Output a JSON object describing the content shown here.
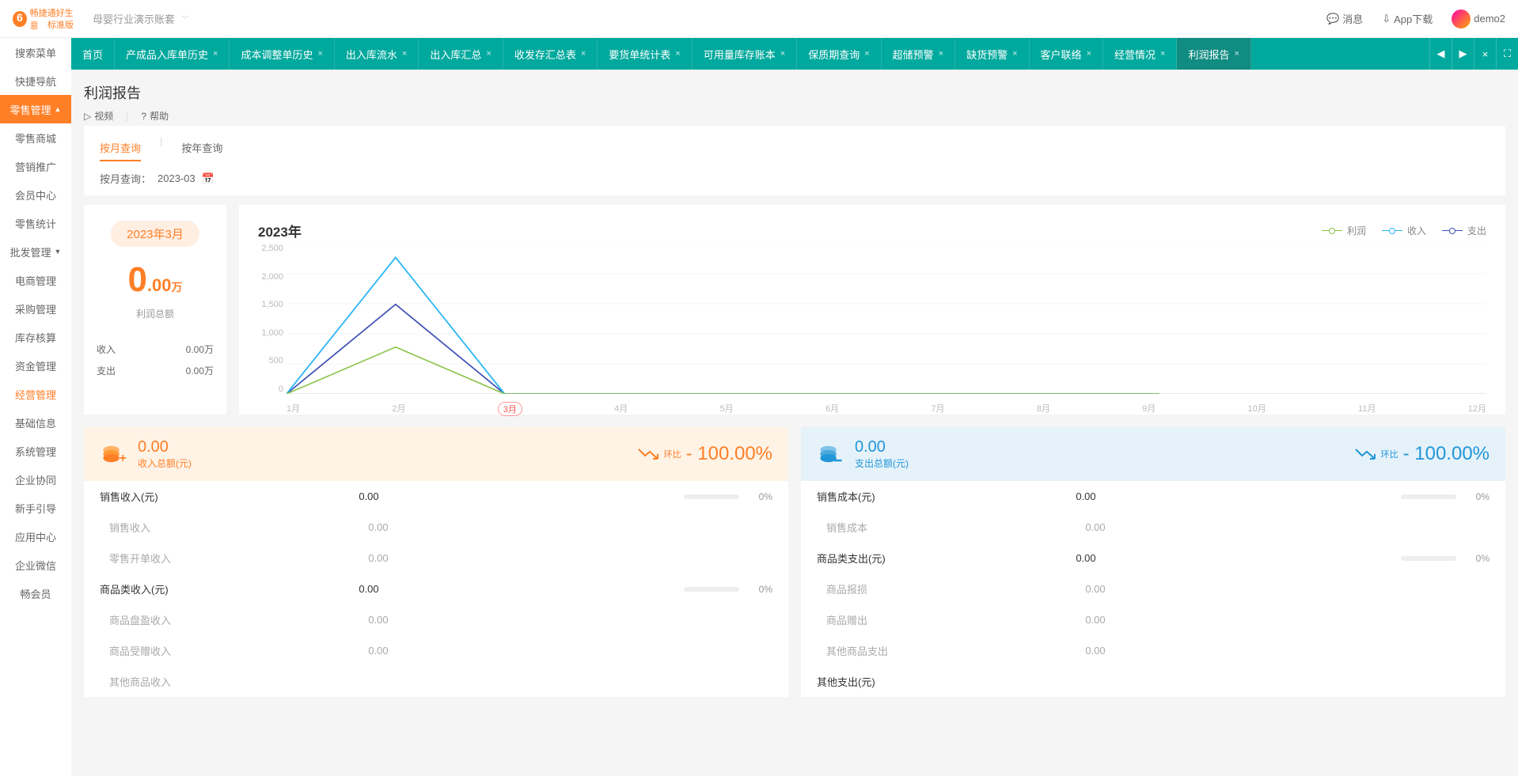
{
  "header": {
    "logo_text": "畅捷通好生意",
    "logo_sub": "标准版",
    "account": "母婴行业演示账套",
    "msg": "消息",
    "app": "App下载",
    "user": "demo2"
  },
  "sidebar": {
    "items": [
      {
        "label": "搜索菜单"
      },
      {
        "label": "快捷导航"
      },
      {
        "label": "零售管理",
        "active_bg": true,
        "arrow": "▲"
      },
      {
        "label": "零售商城"
      },
      {
        "label": "营销推广"
      },
      {
        "label": "会员中心"
      },
      {
        "label": "零售统计"
      },
      {
        "label": "批发管理",
        "arrow": "▼"
      },
      {
        "label": "电商管理"
      },
      {
        "label": "采购管理"
      },
      {
        "label": "库存核算"
      },
      {
        "label": "资金管理"
      },
      {
        "label": "经营管理",
        "active": true
      },
      {
        "label": "基础信息"
      },
      {
        "label": "系统管理"
      },
      {
        "label": "企业协同"
      },
      {
        "label": "新手引导"
      },
      {
        "label": "应用中心"
      },
      {
        "label": "企业微信"
      },
      {
        "label": "畅会员"
      }
    ]
  },
  "tabs": [
    {
      "label": "首页",
      "closable": false
    },
    {
      "label": "产成品入库单历史",
      "closable": true
    },
    {
      "label": "成本调整单历史",
      "closable": true
    },
    {
      "label": "出入库流水",
      "closable": true
    },
    {
      "label": "出入库汇总",
      "closable": true
    },
    {
      "label": "收发存汇总表",
      "closable": true
    },
    {
      "label": "要货单统计表",
      "closable": true
    },
    {
      "label": "可用量库存账本",
      "closable": true
    },
    {
      "label": "保质期查询",
      "closable": true
    },
    {
      "label": "超储预警",
      "closable": true
    },
    {
      "label": "缺货预警",
      "closable": true
    },
    {
      "label": "客户联络",
      "closable": true
    },
    {
      "label": "经营情况",
      "closable": true
    },
    {
      "label": "利润报告",
      "closable": true,
      "active": true
    }
  ],
  "page": {
    "title": "利润报告",
    "video": "视频",
    "help": "帮助"
  },
  "query": {
    "tab_month": "按月查询",
    "tab_year": "按年查询",
    "label": "按月查询：",
    "date": "2023-03"
  },
  "summary": {
    "month_pill": "2023年3月",
    "big_int": "0",
    "big_dec": ".00",
    "big_unit": "万",
    "big_label": "利润总额",
    "income_label": "收入",
    "income_val": "0.00万",
    "expense_label": "支出",
    "expense_val": "0.00万"
  },
  "chart": {
    "title": "2023年",
    "legend": [
      {
        "label": "利润",
        "color": "#8bc34a"
      },
      {
        "label": "收入",
        "color": "#29b6f6"
      },
      {
        "label": "支出",
        "color": "#3f51b5"
      }
    ],
    "y_max": 2500,
    "y_ticks": [
      "2,500",
      "2,000",
      "1,500",
      "1,000",
      "500",
      "0"
    ],
    "x_labels": [
      "1月",
      "2月",
      "3月",
      "4月",
      "5月",
      "6月",
      "7月",
      "8月",
      "9月",
      "10月",
      "11月",
      "12月"
    ],
    "highlight_index": 2,
    "series": {
      "profit": [
        0,
        780,
        0,
        0,
        0,
        0,
        0,
        0,
        0,
        0,
        0,
        0
      ],
      "income": [
        0,
        2270,
        0,
        0,
        0,
        0,
        0,
        0,
        0,
        0,
        0,
        0
      ],
      "expense": [
        0,
        1490,
        0,
        0,
        0,
        0,
        0,
        0,
        0,
        0,
        0,
        0
      ]
    },
    "colors": {
      "profit": "#8bc34a",
      "income": "#29b6f6",
      "expense": "#3f51b5"
    },
    "grid_color": "#f5f5f5"
  },
  "income_panel": {
    "value": "0.00",
    "label": "收入总额(元)",
    "trend_label": "环比",
    "trend_val": "- 100.00%",
    "rows": [
      {
        "label": "销售收入(元)",
        "val": "0.00",
        "pct": "0%",
        "bold": true
      },
      {
        "label": "销售收入",
        "val": "0.00",
        "sub": true
      },
      {
        "label": "零售开单收入",
        "val": "0.00",
        "sub": true
      },
      {
        "label": "商品类收入(元)",
        "val": "0.00",
        "pct": "0%",
        "bold": true
      },
      {
        "label": "商品盘盈收入",
        "val": "0.00",
        "sub": true
      },
      {
        "label": "商品受赠收入",
        "val": "0.00",
        "sub": true
      },
      {
        "label": "其他商品收入",
        "val": "",
        "sub": true
      }
    ]
  },
  "expense_panel": {
    "value": "0.00",
    "label": "支出总额(元)",
    "trend_label": "环比",
    "trend_val": "- 100.00%",
    "rows": [
      {
        "label": "销售成本(元)",
        "val": "0.00",
        "pct": "0%",
        "bold": true
      },
      {
        "label": "销售成本",
        "val": "0.00",
        "sub": true
      },
      {
        "label": "商品类支出(元)",
        "val": "0.00",
        "pct": "0%",
        "bold": true
      },
      {
        "label": "商品报损",
        "val": "0.00",
        "sub": true
      },
      {
        "label": "商品赠出",
        "val": "0.00",
        "sub": true
      },
      {
        "label": "其他商品支出",
        "val": "0.00",
        "sub": true
      },
      {
        "label": "其他支出(元)",
        "val": "",
        "bold": true
      }
    ]
  }
}
